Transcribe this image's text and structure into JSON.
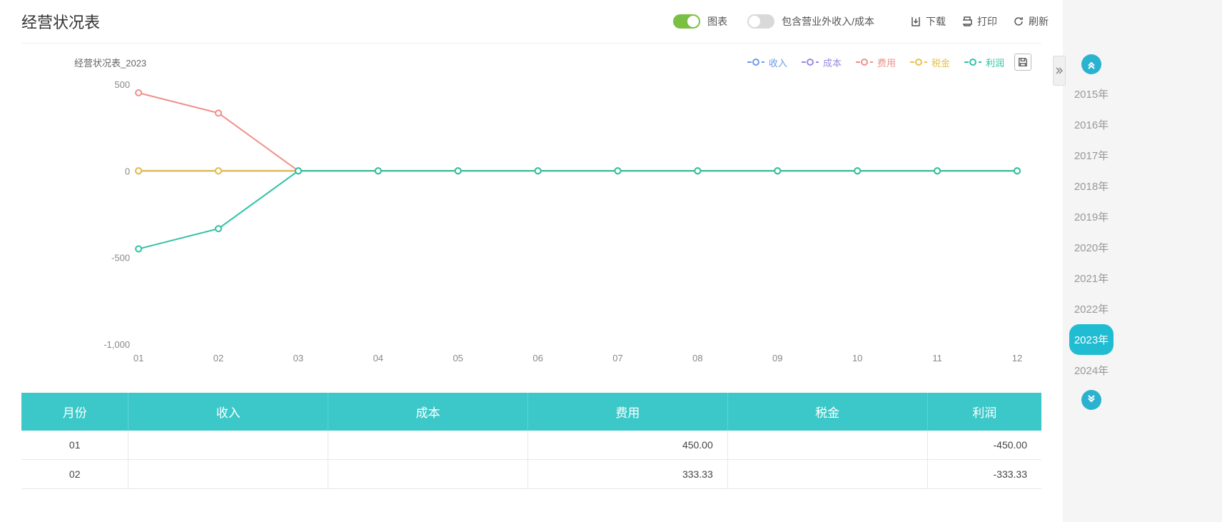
{
  "page_title": "经营状况表",
  "toggles": {
    "chart": {
      "label": "图表",
      "on": true
    },
    "include_nonop": {
      "label": "包含营业外收入/成本",
      "on": false
    }
  },
  "actions": {
    "download": "下载",
    "print": "打印",
    "refresh": "刷新"
  },
  "chart": {
    "type": "line",
    "title": "经营状况表_2023",
    "series": [
      {
        "key": "income",
        "label": "收入",
        "color": "#6a9be8",
        "values": [
          0,
          0,
          0,
          0,
          0,
          0,
          0,
          0,
          0,
          0,
          0,
          0
        ]
      },
      {
        "key": "cost",
        "label": "成本",
        "color": "#9c89e0",
        "values": [
          0,
          0,
          0,
          0,
          0,
          0,
          0,
          0,
          0,
          0,
          0,
          0
        ]
      },
      {
        "key": "expense",
        "label": "费用",
        "color": "#f08f8a",
        "values": [
          450,
          333.33,
          0,
          0,
          0,
          0,
          0,
          0,
          0,
          0,
          0,
          0
        ]
      },
      {
        "key": "tax",
        "label": "税金",
        "color": "#e6c14b",
        "values": [
          0,
          0,
          0,
          0,
          0,
          0,
          0,
          0,
          0,
          0,
          0,
          0
        ]
      },
      {
        "key": "profit",
        "label": "利润",
        "color": "#2fc2a5",
        "values": [
          -450,
          -333.33,
          0,
          0,
          0,
          0,
          0,
          0,
          0,
          0,
          0,
          0
        ]
      }
    ],
    "x_categories": [
      "01",
      "02",
      "03",
      "04",
      "05",
      "06",
      "07",
      "08",
      "09",
      "10",
      "11",
      "12"
    ],
    "y_ticks": [
      -1000,
      -500,
      0,
      500
    ],
    "ylim": [
      -1000,
      500
    ],
    "line_width": 2,
    "marker_radius": 4,
    "marker_style": "hollow",
    "background_color": "#ffffff",
    "axis_color": "#cccccc",
    "label_color": "#888888",
    "label_fontsize": 13
  },
  "table": {
    "columns": [
      "月份",
      "收入",
      "成本",
      "费用",
      "税金",
      "利润"
    ],
    "col_align": [
      "center",
      "right",
      "right",
      "right",
      "right",
      "right"
    ],
    "col_widths": [
      "150px",
      "280px",
      "280px",
      "280px",
      "280px",
      "160px"
    ],
    "rows": [
      [
        "01",
        "",
        "",
        "450.00",
        "",
        "-450.00"
      ],
      [
        "02",
        "",
        "",
        "333.33",
        "",
        "-333.33"
      ]
    ]
  },
  "years": {
    "list": [
      "2015年",
      "2016年",
      "2017年",
      "2018年",
      "2019年",
      "2020年",
      "2021年",
      "2022年",
      "2023年",
      "2024年"
    ],
    "active": "2023年"
  }
}
